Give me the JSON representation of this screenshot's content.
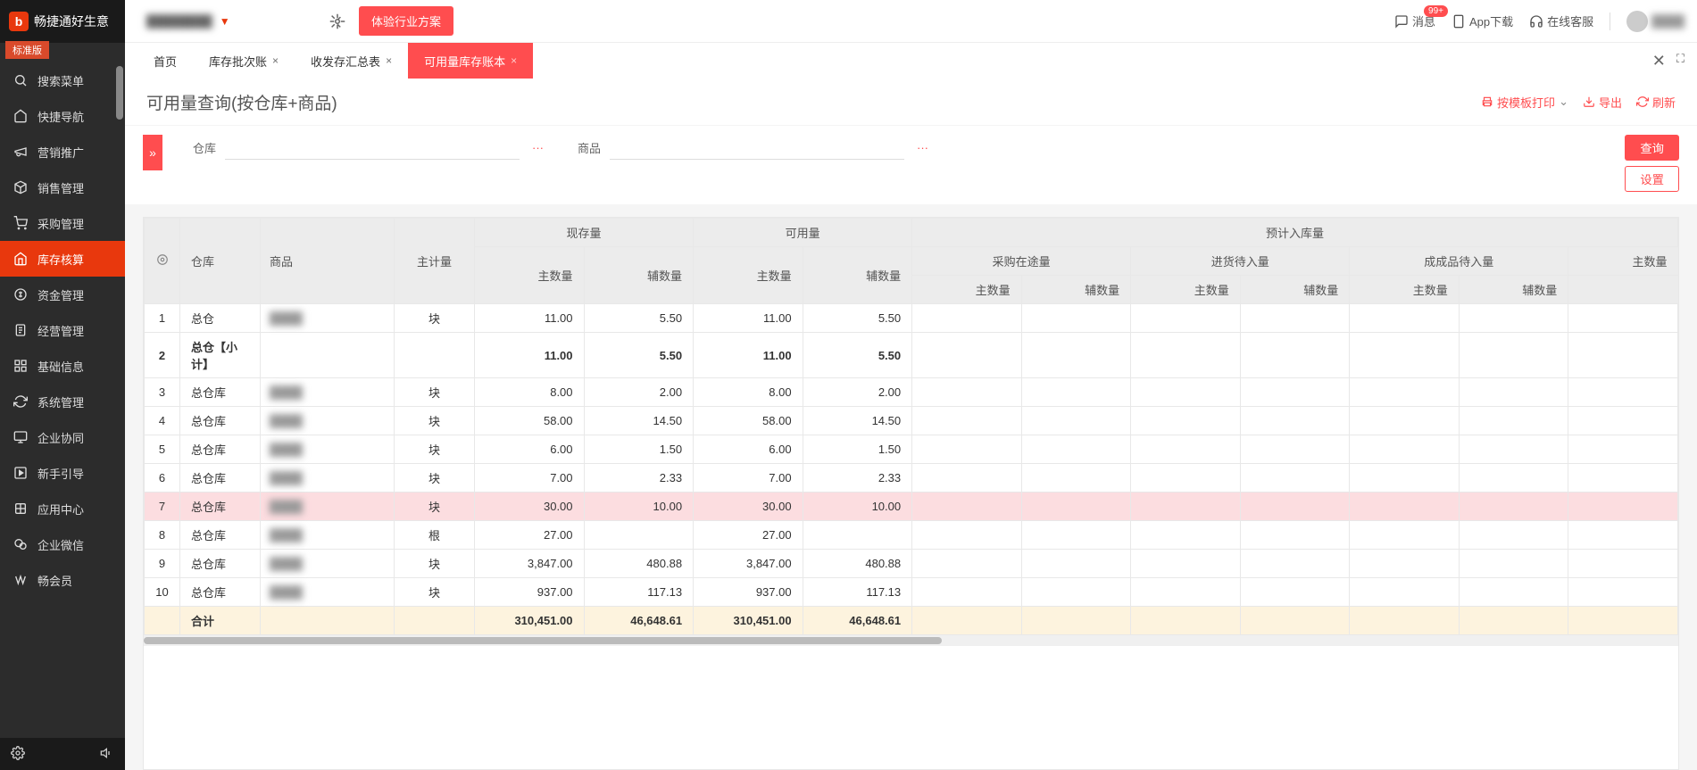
{
  "brand": {
    "name": "畅捷通好生意",
    "edition": "标准版",
    "logo_letter": "b"
  },
  "sidebar": {
    "items": [
      {
        "label": "搜索菜单",
        "icon": "search"
      },
      {
        "label": "快捷导航",
        "icon": "home"
      },
      {
        "label": "营销推广",
        "icon": "megaphone"
      },
      {
        "label": "销售管理",
        "icon": "package"
      },
      {
        "label": "采购管理",
        "icon": "cart"
      },
      {
        "label": "库存核算",
        "icon": "warehouse",
        "active": true
      },
      {
        "label": "资金管理",
        "icon": "coin"
      },
      {
        "label": "经营管理",
        "icon": "clipboard"
      },
      {
        "label": "基础信息",
        "icon": "grid"
      },
      {
        "label": "系统管理",
        "icon": "cycle"
      },
      {
        "label": "企业协同",
        "icon": "screen"
      },
      {
        "label": "新手引导",
        "icon": "play"
      },
      {
        "label": "应用中心",
        "icon": "apps"
      },
      {
        "label": "企业微信",
        "icon": "wechat"
      },
      {
        "label": "畅会员",
        "icon": "vip"
      }
    ]
  },
  "topbar": {
    "company": "████████",
    "experience_btn": "体验行业方案",
    "msg": "消息",
    "msg_badge": "99+",
    "app_download": "App下载",
    "online_service": "在线客服",
    "username": "████"
  },
  "tabs": [
    {
      "label": "首页",
      "closable": false
    },
    {
      "label": "库存批次账",
      "closable": true
    },
    {
      "label": "收发存汇总表",
      "closable": true
    },
    {
      "label": "可用量库存账本",
      "closable": true,
      "active": true
    }
  ],
  "page": {
    "title": "可用量查询(按仓库+商品)",
    "print": "按模板打印",
    "export": "导出",
    "refresh": "刷新"
  },
  "filter": {
    "warehouse_label": "仓库",
    "product_label": "商品",
    "more": "···",
    "query": "查询",
    "settings": "设置"
  },
  "table": {
    "headers": {
      "warehouse": "仓库",
      "product": "商品",
      "main_unit": "主计量",
      "onhand": "现存量",
      "available": "可用量",
      "expected_in": "预计入库量",
      "main_qty": "主数量",
      "aux_qty": "辅数量",
      "po_transit": "采购在途量",
      "receipt_pending": "进货待入量",
      "finished_pending": "成成品待入量"
    },
    "rows": [
      {
        "idx": "1",
        "wh": "总仓",
        "prod": "████",
        "unit": "块",
        "oh_m": "11.00",
        "oh_a": "5.50",
        "av_m": "11.00",
        "av_a": "5.50"
      },
      {
        "idx": "2",
        "wh": "总仓【小计】",
        "subtotal": true,
        "oh_m": "11.00",
        "oh_a": "5.50",
        "av_m": "11.00",
        "av_a": "5.50"
      },
      {
        "idx": "3",
        "wh": "总仓库",
        "prod": "████",
        "unit": "块",
        "oh_m": "8.00",
        "oh_a": "2.00",
        "av_m": "8.00",
        "av_a": "2.00"
      },
      {
        "idx": "4",
        "wh": "总仓库",
        "prod": "████",
        "unit": "块",
        "oh_m": "58.00",
        "oh_a": "14.50",
        "av_m": "58.00",
        "av_a": "14.50"
      },
      {
        "idx": "5",
        "wh": "总仓库",
        "prod": "████",
        "unit": "块",
        "oh_m": "6.00",
        "oh_a": "1.50",
        "av_m": "6.00",
        "av_a": "1.50"
      },
      {
        "idx": "6",
        "wh": "总仓库",
        "prod": "████",
        "unit": "块",
        "oh_m": "7.00",
        "oh_a": "2.33",
        "av_m": "7.00",
        "av_a": "2.33"
      },
      {
        "idx": "7",
        "wh": "总仓库",
        "prod": "████",
        "unit": "块",
        "oh_m": "30.00",
        "oh_a": "10.00",
        "av_m": "30.00",
        "av_a": "10.00",
        "highlight": true
      },
      {
        "idx": "8",
        "wh": "总仓库",
        "prod": "████",
        "unit": "根",
        "oh_m": "27.00",
        "oh_a": "",
        "av_m": "27.00",
        "av_a": ""
      },
      {
        "idx": "9",
        "wh": "总仓库",
        "prod": "████",
        "unit": "块",
        "oh_m": "3,847.00",
        "oh_a": "480.88",
        "av_m": "3,847.00",
        "av_a": "480.88"
      },
      {
        "idx": "10",
        "wh": "总仓库",
        "prod": "████",
        "unit": "块",
        "oh_m": "937.00",
        "oh_a": "117.13",
        "av_m": "937.00",
        "av_a": "117.13"
      }
    ],
    "total": {
      "label": "合计",
      "oh_m": "310,451.00",
      "oh_a": "46,648.61",
      "av_m": "310,451.00",
      "av_a": "46,648.61"
    }
  },
  "colors": {
    "accent": "#ff4d4f",
    "sidebar_bg": "#2c2c2c",
    "highlight_row": "#fcdde0",
    "total_row": "#fdf3de"
  }
}
